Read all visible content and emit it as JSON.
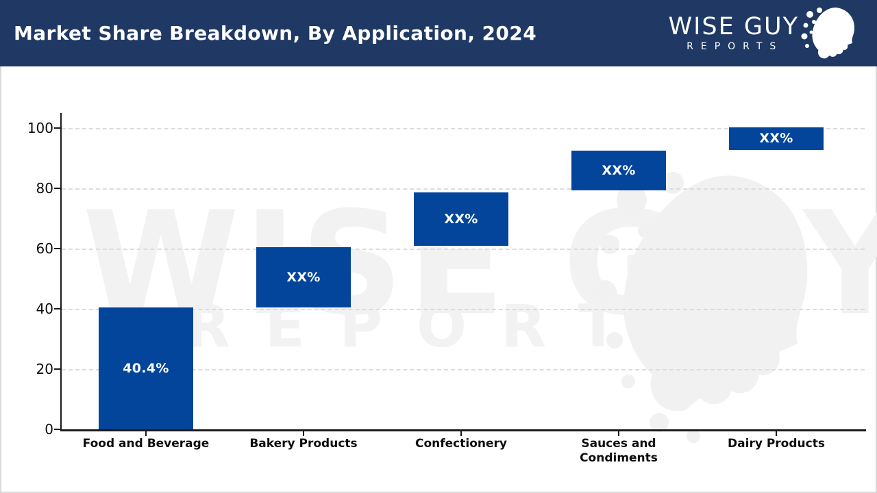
{
  "header": {
    "title": "Market Share Breakdown, By Application, 2024",
    "logo": {
      "line1": "WISE GUY",
      "line2": "REPORTS"
    },
    "bg_color": "#1f3864"
  },
  "watermark": {
    "line1": "WISE GUY",
    "line2": "REPORTS"
  },
  "chart_data": {
    "type": "bar",
    "subtype": "waterfall",
    "title": "Market Share Breakdown, By Application, 2024",
    "categories": [
      "Food and Beverage",
      "Bakery Products",
      "Confectionery",
      "Sauces and Condiments",
      "Dairy Products"
    ],
    "bars": [
      {
        "category": "Food and Beverage",
        "start": 0,
        "end": 40.4,
        "label": "40.4%"
      },
      {
        "category": "Bakery Products",
        "start": 40.5,
        "end": 60.4,
        "label": "XX%"
      },
      {
        "category": "Confectionery",
        "start": 60.8,
        "end": 78.6,
        "label": "XX%"
      },
      {
        "category": "Sauces and Condiments",
        "start": 79.3,
        "end": 92.6,
        "label": "XX%"
      },
      {
        "category": "Dairy Products",
        "start": 92.8,
        "end": 100.2,
        "label": "XX%"
      }
    ],
    "yticks": [
      0,
      20,
      40,
      60,
      80,
      100
    ],
    "ylim": [
      0,
      105
    ],
    "xlabel": "",
    "ylabel": "",
    "bar_color": "#04459c",
    "grid": "horizontal-dashed",
    "legend": "none"
  }
}
